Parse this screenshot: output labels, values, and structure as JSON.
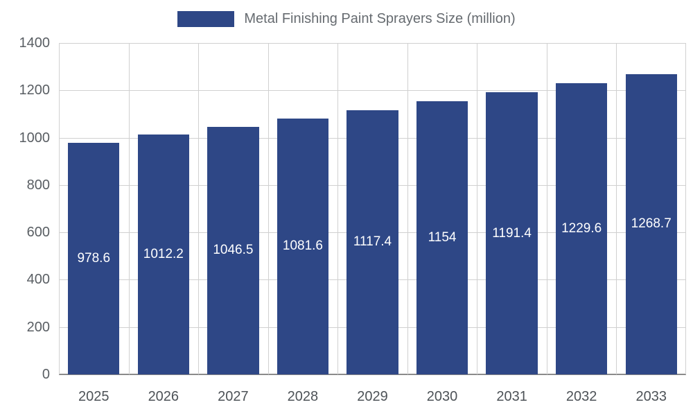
{
  "chart_data": {
    "type": "bar",
    "title": "Metal Finishing Paint Sprayers Size (million)",
    "categories": [
      "2025",
      "2026",
      "2027",
      "2028",
      "2029",
      "2030",
      "2031",
      "2032",
      "2033"
    ],
    "values": [
      978.6,
      1012.2,
      1046.5,
      1081.6,
      1117.4,
      1154,
      1191.4,
      1229.6,
      1268.7
    ],
    "value_labels": [
      "978.6",
      "1012.2",
      "1046.5",
      "1081.6",
      "1117.4",
      "1154",
      "1191.4",
      "1229.6",
      "1268.7"
    ],
    "xlabel": "",
    "ylabel": "",
    "ylim": [
      0,
      1400
    ],
    "yticks": [
      0,
      200,
      400,
      600,
      800,
      1000,
      1200,
      1400
    ],
    "grid": true,
    "legend_position": "top-center",
    "colors": {
      "bar": "#2e4786",
      "grid": "#d0d0d0",
      "axis_line": "#8b8b8b",
      "ytick_text": "#595e63",
      "xtick_text": "#4d5257",
      "title_text": "#666b70",
      "bar_label_text": "#ffffff",
      "background": "#ffffff"
    }
  }
}
